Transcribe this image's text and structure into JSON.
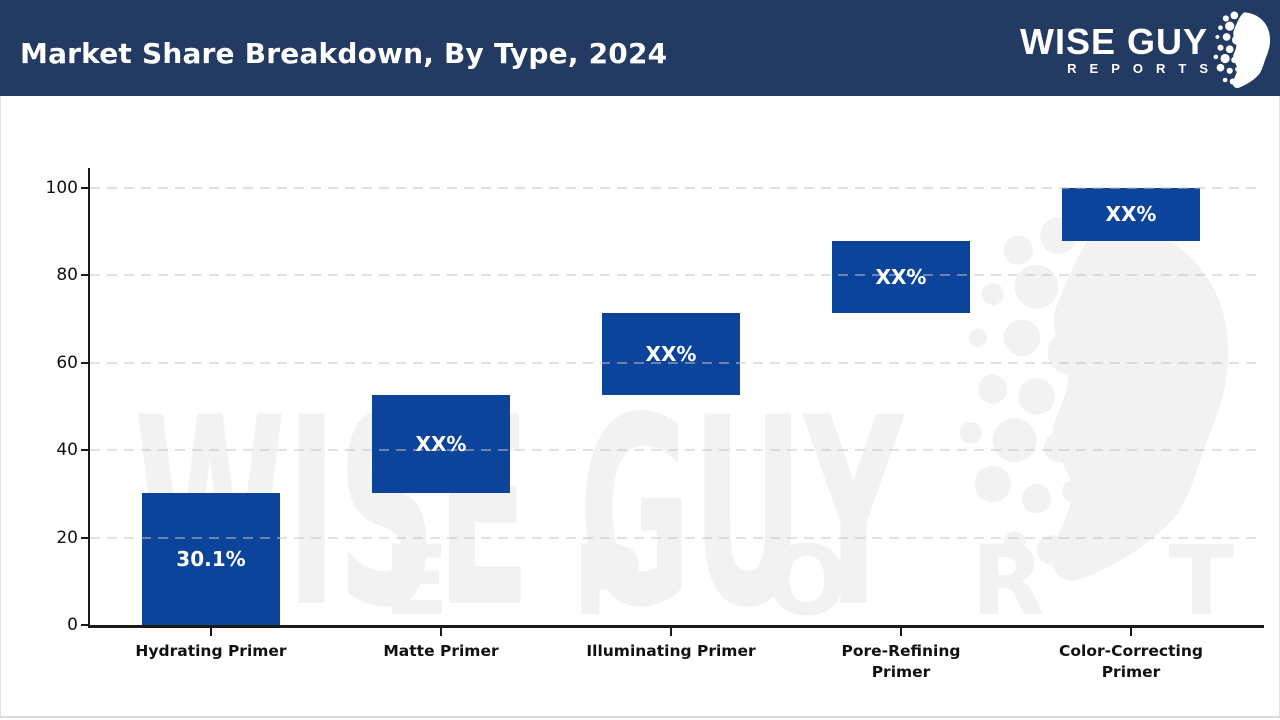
{
  "header": {
    "title": "Market Share Breakdown, By Type, 2024",
    "logo": {
      "line1": "WISE GUY",
      "line2": "REPORTS"
    }
  },
  "watermark": {
    "line1": "WISE GUY",
    "line2": "R E P O R T S"
  },
  "chart_data": {
    "type": "bar",
    "subtype": "waterfall",
    "title": "Market Share Breakdown, By Type, 2024",
    "categories": [
      "Hydrating Primer",
      "Matte Primer",
      "Illuminating Primer",
      "Pore-Refining Primer",
      "Color-Correcting Primer"
    ],
    "segments": [
      {
        "category": "Hydrating Primer",
        "start": 0,
        "end": 30.1,
        "label": "30.1%"
      },
      {
        "category": "Matte Primer",
        "start": 30.1,
        "end": 52.6,
        "label": "XX%"
      },
      {
        "category": "Illuminating Primer",
        "start": 52.6,
        "end": 71.4,
        "label": "XX%"
      },
      {
        "category": "Pore-Refining Primer",
        "start": 71.4,
        "end": 87.7,
        "label": "XX%"
      },
      {
        "category": "Color-Correcting Primer",
        "start": 87.7,
        "end": 100,
        "label": "XX%"
      }
    ],
    "yticks": [
      0,
      20,
      40,
      60,
      80,
      100
    ],
    "ylim": [
      0,
      104
    ],
    "xlabel": "",
    "ylabel": "",
    "grid": "dashed-horizontal",
    "legend": "none",
    "bar_color": "#0c449c"
  },
  "colors": {
    "header_bg": "#233a62",
    "bar": "#0c449c",
    "axis": "#1a1a1a",
    "watermark": "#f2f2f2"
  }
}
